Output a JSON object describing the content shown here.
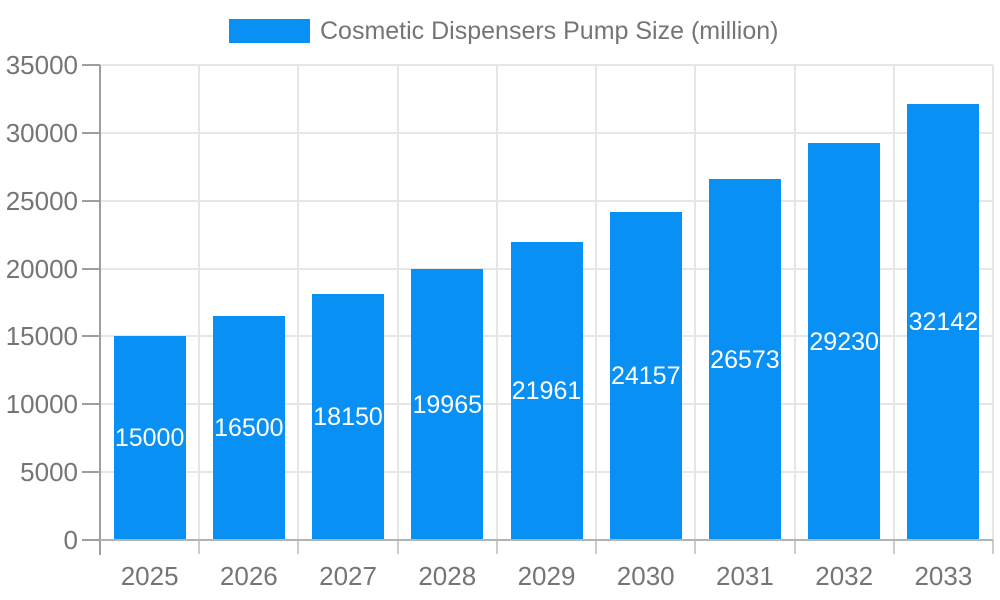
{
  "legend": {
    "label": "Cosmetic Dispensers Pump Size (million)"
  },
  "chart_data": {
    "type": "bar",
    "title": "Cosmetic Dispensers Pump Size (million)",
    "categories": [
      "2025",
      "2026",
      "2027",
      "2028",
      "2029",
      "2030",
      "2031",
      "2032",
      "2033"
    ],
    "values": [
      15000,
      16500,
      18150,
      19965,
      21961,
      24157,
      26573,
      29230,
      32142
    ],
    "xlabel": "",
    "ylabel": "",
    "ylim": [
      0,
      35000
    ],
    "ytick_step": 5000,
    "grid": true,
    "legend_position": "top-center",
    "value_labels": "inside-center",
    "colors": {
      "bar": "#0990f5",
      "grid": "#e6e6e6",
      "axis": "#9e9e9e",
      "x_axis_line": "#b3b3b3",
      "text": "#757575",
      "value_label": "#ffffff"
    }
  }
}
